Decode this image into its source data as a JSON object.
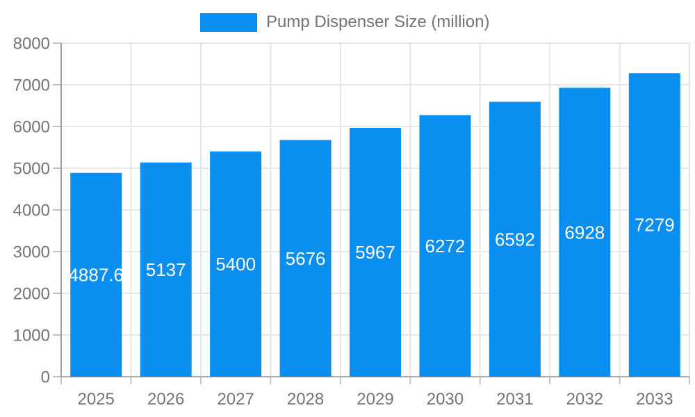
{
  "chart_data": {
    "type": "bar",
    "title": "Pump Dispenser Size (million)",
    "legend": {
      "label": "Pump Dispenser Size (million)",
      "position": "top"
    },
    "categories": [
      "2025",
      "2026",
      "2027",
      "2028",
      "2029",
      "2030",
      "2031",
      "2032",
      "2033"
    ],
    "series": [
      {
        "name": "Pump Dispenser Size (million)",
        "values": [
          4887.6,
          5137,
          5400,
          5676,
          5967,
          6272,
          6592,
          6928,
          7279
        ],
        "value_labels": [
          "4887.6",
          "5137",
          "5400",
          "5676",
          "5967",
          "6272",
          "6592",
          "6928",
          "7279"
        ]
      }
    ],
    "xlabel": "",
    "ylabel": "",
    "ylim": [
      0,
      8000
    ],
    "ytick_step": 1000,
    "ytick_labels": [
      "0",
      "1000",
      "2000",
      "3000",
      "4000",
      "5000",
      "6000",
      "7000",
      "8000"
    ],
    "grid": true,
    "value_labels_inside_bars": true,
    "colors": {
      "bar": "#0a8ff0",
      "value_label_text": "#ffffff",
      "axis_text": "#757575",
      "legend_text": "#757575",
      "gridline": "#e6e6e6",
      "axis_line": "#9e9e9e",
      "baseline": "#ababab",
      "tick": "#c2c2c2",
      "background": "#ffffff"
    }
  }
}
